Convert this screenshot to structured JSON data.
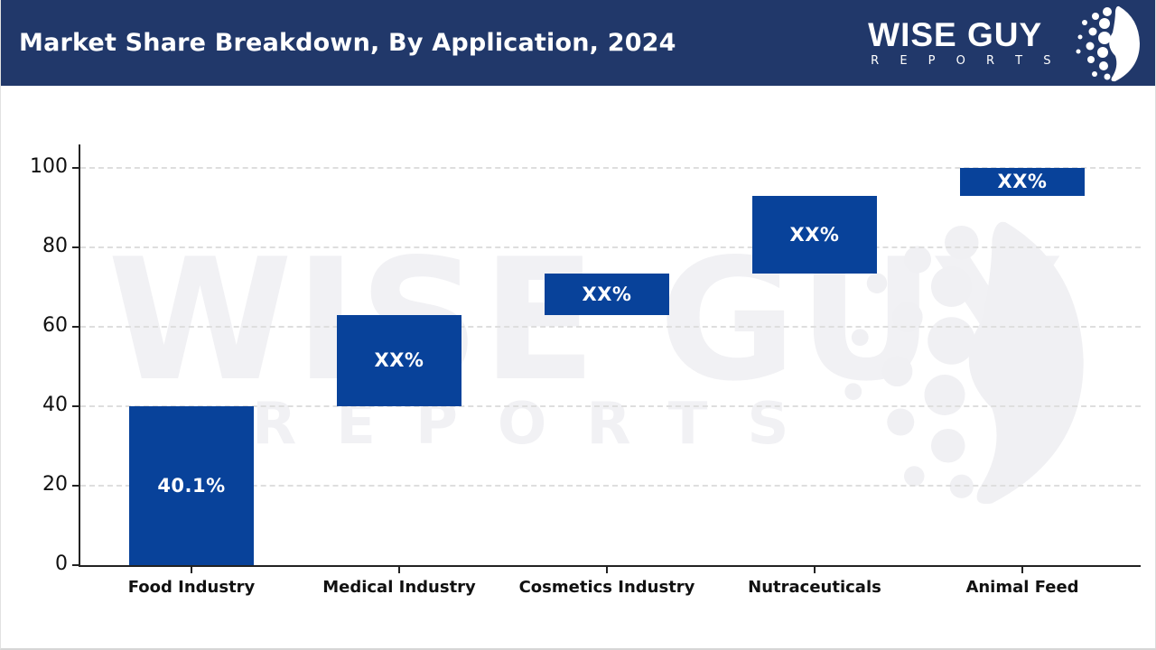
{
  "header": {
    "title": "Market Share Breakdown, By Application, 2024",
    "background_color": "#21386a",
    "logo": {
      "line1": "WISE GUY",
      "line2": "R E P O R T S"
    }
  },
  "watermark": {
    "line1": "WISE GUY",
    "line2": "REPORTS"
  },
  "chart_data": {
    "type": "bar",
    "subtype": "waterfall",
    "title": "Market Share Breakdown, By Application, 2024",
    "xlabel": "",
    "ylabel": "",
    "categories": [
      "Food Industry",
      "Medical Industry",
      "Cosmetics Industry",
      "Nutraceuticals",
      "Animal Feed"
    ],
    "segments": [
      {
        "category": "Food Industry",
        "start": 0,
        "end": 40.1,
        "label": "40.1%"
      },
      {
        "category": "Medical Industry",
        "start": 40.1,
        "end": 63,
        "label": "XX%"
      },
      {
        "category": "Cosmetics Industry",
        "start": 63,
        "end": 73.5,
        "label": "XX%"
      },
      {
        "category": "Nutraceuticals",
        "start": 73.5,
        "end": 93,
        "label": "XX%"
      },
      {
        "category": "Animal Feed",
        "start": 93,
        "end": 100,
        "label": "XX%"
      }
    ],
    "yticks": [
      0,
      20,
      40,
      60,
      80,
      100
    ],
    "ylim": [
      0,
      106
    ],
    "grid": "dashed-horizontal",
    "legend": "none",
    "bar_color": "#08429a",
    "bar_label_color": "#ffffff",
    "axis_color": "#222222"
  }
}
